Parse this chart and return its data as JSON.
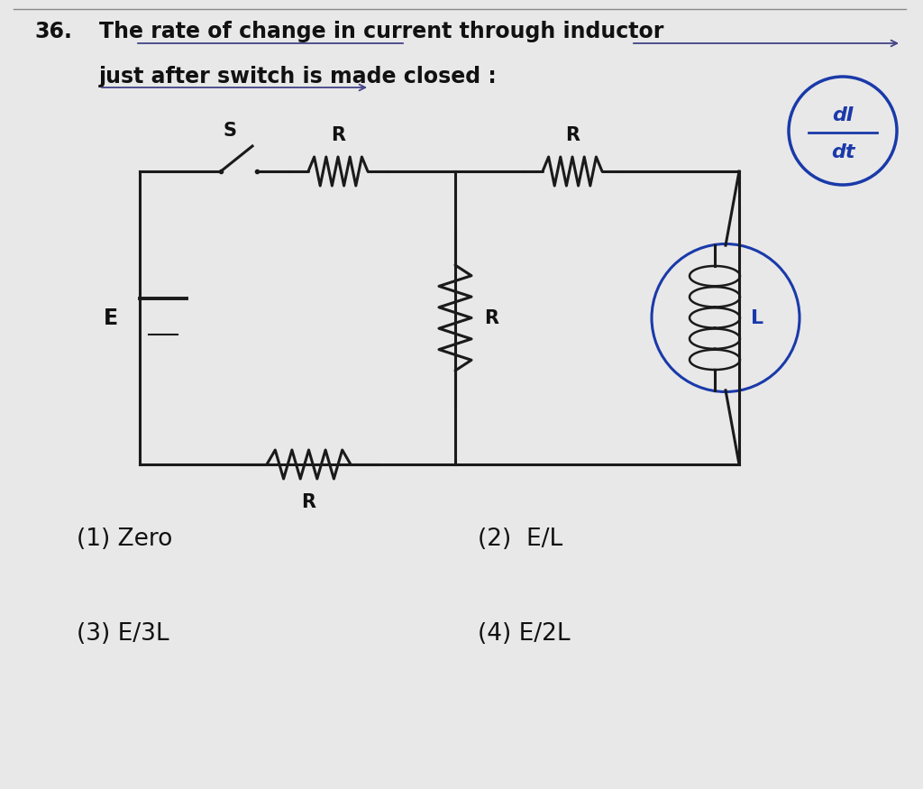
{
  "background_color": "#e8e8e8",
  "paper_color": "#efefef",
  "question_number": "36.",
  "question_text_line1": "The rate of change in current through inductor",
  "question_text_line2": "just after switch is made closed :",
  "options": [
    "(1) Zero",
    "(2)  E/L",
    "(3) E/3L",
    "(4) E/2L"
  ],
  "circuit_color": "#1a1a1a",
  "inductor_color": "#1a3aaa",
  "annotation_color": "#1a3aaa",
  "text_color": "#111111",
  "underline_color": "#444488"
}
